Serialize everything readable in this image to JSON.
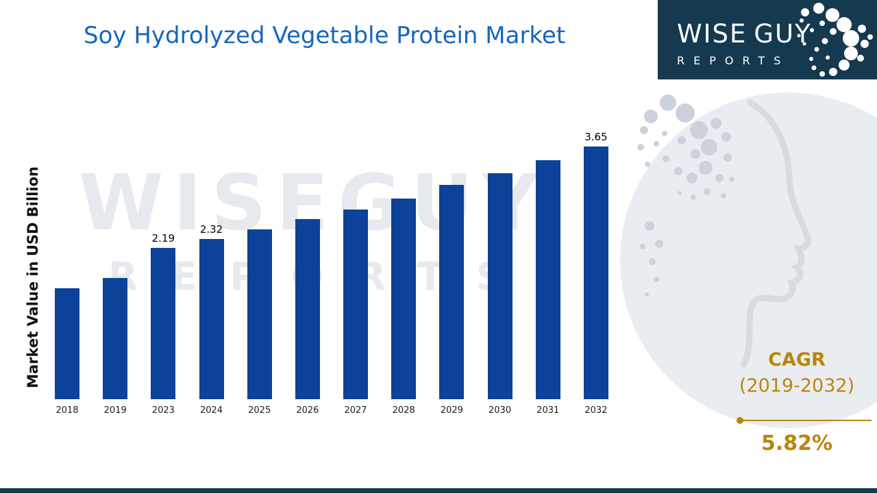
{
  "page": {
    "title": "Soy Hydrolyzed Vegetable Protein Market"
  },
  "brand": {
    "wise": "WISE",
    "guy": "GUY",
    "reports": "REPORTS"
  },
  "watermark": {
    "line1": "WISEGUY",
    "line2": "REPORTS"
  },
  "cagr": {
    "label": "CAGR",
    "range": "(2019-2032)",
    "value": "5.82%"
  },
  "colors": {
    "bar": "#0c4299",
    "title_text": "#1565c0",
    "brand_background": "#15394f",
    "gold_accent": "#b8860b",
    "watermark_gray": "#d3d8e0"
  },
  "chart_data": {
    "type": "bar",
    "title": "Soy Hydrolyzed Vegetable Protein Market",
    "xlabel": "",
    "ylabel": "Market Value in USD Billion",
    "ylim": [
      0,
      4
    ],
    "grid": false,
    "categories": [
      "2018",
      "2019",
      "2023",
      "2024",
      "2025",
      "2026",
      "2027",
      "2028",
      "2029",
      "2030",
      "2031",
      "2032"
    ],
    "values": [
      1.6,
      1.75,
      2.19,
      2.32,
      2.46,
      2.6,
      2.74,
      2.9,
      3.1,
      3.27,
      3.46,
      3.65
    ],
    "value_labels": [
      "",
      "",
      "2.19",
      "2.32",
      "",
      "",
      "",
      "",
      "",
      "",
      "",
      "3.65"
    ],
    "bar_color": "#0c4299"
  }
}
